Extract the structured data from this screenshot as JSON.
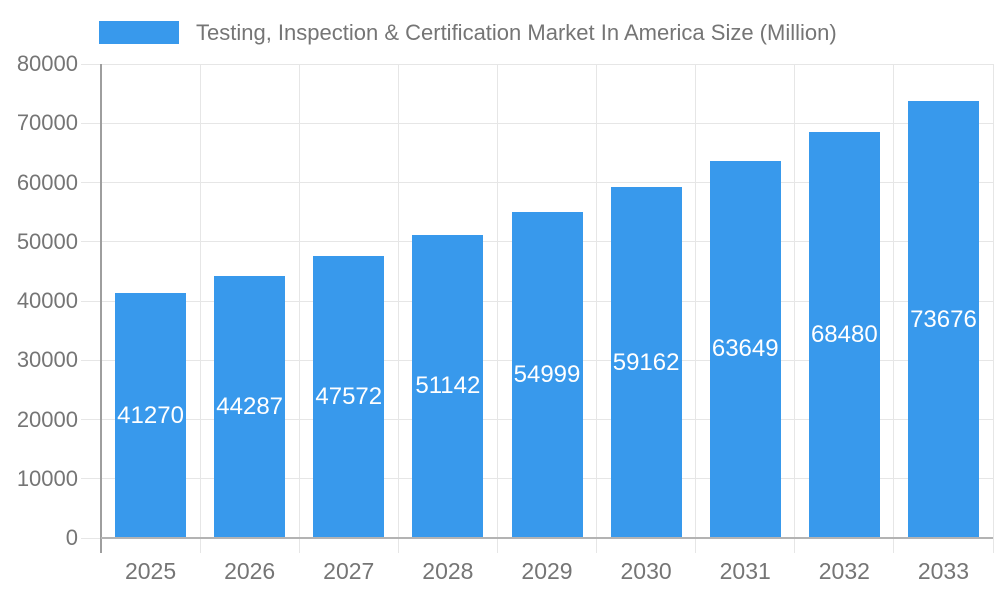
{
  "chart_data": {
    "type": "bar",
    "title": "Testing, Inspection & Certification Market In America Size (Million)",
    "categories": [
      "2025",
      "2026",
      "2027",
      "2028",
      "2029",
      "2030",
      "2031",
      "2032",
      "2033"
    ],
    "values": [
      41270,
      44287,
      47572,
      51142,
      54999,
      59162,
      63649,
      68480,
      73676
    ],
    "series": [
      {
        "name": "Testing, Inspection & Certification Market In America Size (Million)",
        "values": [
          41270,
          44287,
          47572,
          51142,
          54999,
          59162,
          63649,
          68480,
          73676
        ]
      }
    ],
    "xlabel": "",
    "ylabel": "",
    "ylim": [
      0,
      80000
    ],
    "yticks": [
      0,
      10000,
      20000,
      30000,
      40000,
      50000,
      60000,
      70000,
      80000
    ],
    "grid": true,
    "legend_position": "top",
    "bar_value_labels": "inside-center",
    "colors": {
      "bar": "#3899EC",
      "bar_label": "#FFFFFF",
      "axis_text": "#757575",
      "gridline": "#E6E6E6",
      "y_axis_line": "#9E9E9E",
      "x_baseline": "#B3B3B3",
      "background": "#FFFFFF"
    }
  }
}
